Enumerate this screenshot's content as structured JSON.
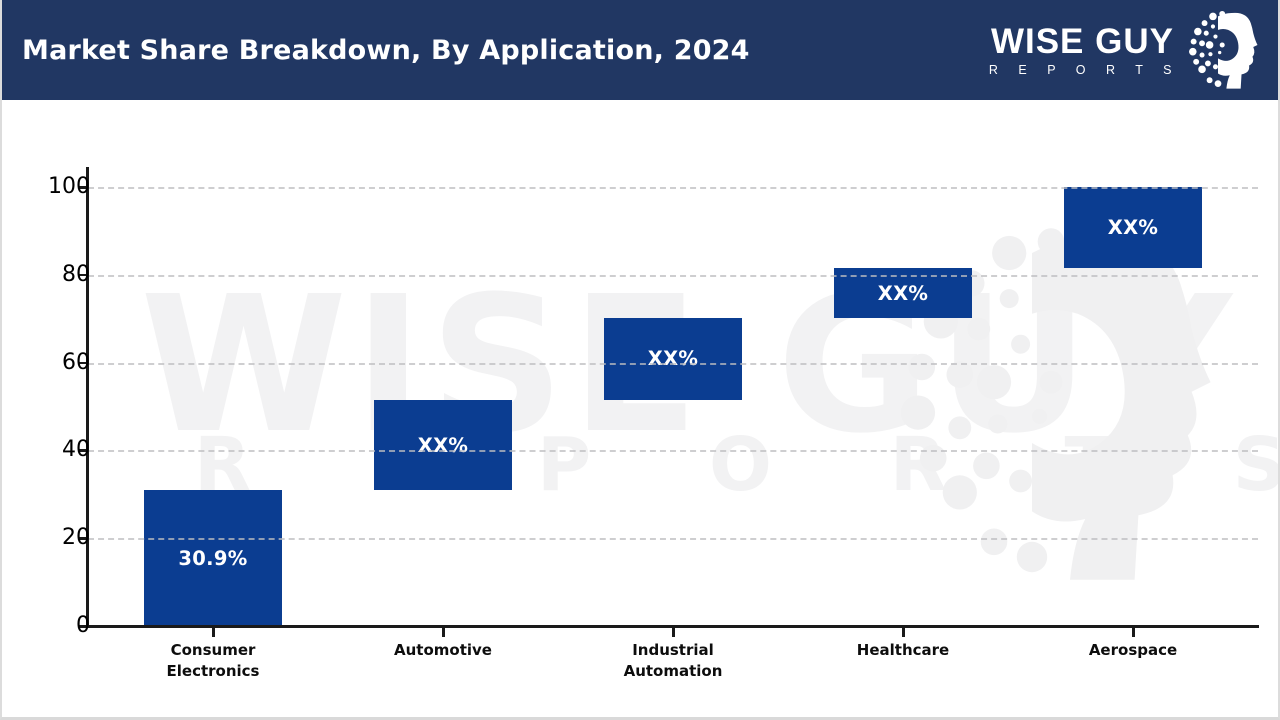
{
  "header": {
    "title": "Market Share Breakdown, By Application, 2024",
    "logo": {
      "wordmark": "WISE GUY",
      "subtext": "R E P O R T S"
    }
  },
  "watermark": {
    "line1": "WISE GUY",
    "line2": "R E P O R T S"
  },
  "chart_data": {
    "type": "bar",
    "subtype": "waterfall",
    "title": "Market Share Breakdown, By Application, 2024",
    "categories": [
      "Consumer Electronics",
      "Automotive",
      "Industrial Automation",
      "Healthcare",
      "Aerospace"
    ],
    "bars": [
      {
        "category": "Consumer Electronics",
        "label_lines": [
          "Consumer",
          "Electronics"
        ],
        "start": 0,
        "end": 30.9,
        "value_label": "30.9%"
      },
      {
        "category": "Automotive",
        "label_lines": [
          "Automotive"
        ],
        "start": 30.9,
        "end": 51.5,
        "value_label": "XX%"
      },
      {
        "category": "Industrial Automation",
        "label_lines": [
          "Industrial",
          "Automation"
        ],
        "start": 51.5,
        "end": 70.2,
        "value_label": "XX%"
      },
      {
        "category": "Healthcare",
        "label_lines": [
          "Healthcare"
        ],
        "start": 70.2,
        "end": 81.5,
        "value_label": "XX%"
      },
      {
        "category": "Aerospace",
        "label_lines": [
          "Aerospace"
        ],
        "start": 81.5,
        "end": 100,
        "value_label": "XX%"
      }
    ],
    "y_ticks": [
      0,
      20,
      40,
      60,
      80,
      100
    ],
    "ylim": [
      0,
      104.5
    ],
    "xlabel": "",
    "ylabel": "",
    "grid": "horizontal-dashed",
    "legend": "none",
    "bar_color": "#0b3d91",
    "value_label_color": "#ffffff"
  },
  "colors": {
    "header_bg": "#213763",
    "bar": "#0b3d91",
    "gridline": "#d9d9d9",
    "axis": "#1a1a1a",
    "watermark": "#f2f2f3"
  }
}
